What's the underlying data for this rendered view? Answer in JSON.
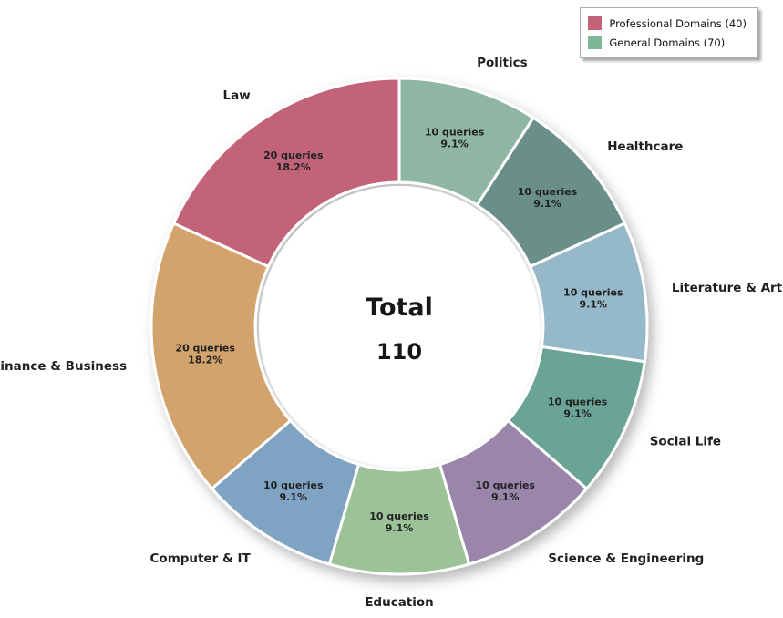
{
  "legend": {
    "items": [
      {
        "label": "Professional Domains (40)",
        "color": "#c26379"
      },
      {
        "label": "General Domains (70)",
        "color": "#7db896"
      }
    ]
  },
  "center": {
    "title": "Total",
    "value": "110"
  },
  "chart_data": {
    "type": "pie",
    "donut": true,
    "start_angle_deg": 0,
    "direction": "clockwise",
    "total": 110,
    "center_label": "Total",
    "center_value": "110",
    "legend_position": "top-right",
    "legend": [
      {
        "label": "Professional Domains (40)",
        "color": "#c26379"
      },
      {
        "label": "General Domains (70)",
        "color": "#7db896"
      }
    ],
    "segments": [
      {
        "label": "Politics",
        "queries": 10,
        "percent": "9.1",
        "color": "#8fb5a3",
        "group": "General Domains"
      },
      {
        "label": "Healthcare",
        "queries": 10,
        "percent": "9.1",
        "color": "#6a8f88",
        "group": "General Domains"
      },
      {
        "label": "Literature & Arts",
        "queries": 10,
        "percent": "9.1",
        "color": "#96b9c9",
        "group": "General Domains"
      },
      {
        "label": "Social Life",
        "queries": 10,
        "percent": "9.1",
        "color": "#6ba495",
        "group": "General Domains"
      },
      {
        "label": "Science & Engineering",
        "queries": 10,
        "percent": "9.1",
        "color": "#9a86aa",
        "group": "General Domains"
      },
      {
        "label": "Education",
        "queries": 10,
        "percent": "9.1",
        "color": "#9cc298",
        "group": "General Domains"
      },
      {
        "label": "Computer & IT",
        "queries": 10,
        "percent": "9.1",
        "color": "#7fa3c2",
        "group": "General Domains"
      },
      {
        "label": "Finance & Business",
        "queries": 20,
        "percent": "18.2",
        "color": "#d2a36c",
        "group": "Professional Domains"
      },
      {
        "label": "Law",
        "queries": 20,
        "percent": "18.2",
        "color": "#c26379",
        "group": "Professional Domains"
      }
    ],
    "inner_label_format": "{queries} queries\n{percent}%"
  }
}
